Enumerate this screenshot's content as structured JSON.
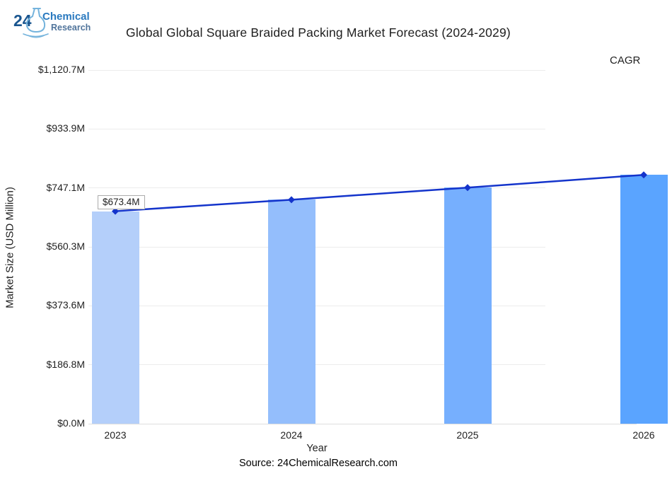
{
  "header": {
    "logo": {
      "number": "24",
      "line1": "Chemical",
      "line2": "Research"
    },
    "cagr_label": "CAGR"
  },
  "chart_data": {
    "type": "bar",
    "subtype": "bars-with-trend-line-and-diamond-markers",
    "title": "Global Global Square Braided Packing Market Forecast (2024-2029)",
    "categories": [
      "2023",
      "2024",
      "2025",
      "2026"
    ],
    "values": [
      673.4,
      709.8,
      748.1,
      788.5
    ],
    "bar_colors": [
      "#b4cffa",
      "#94befc",
      "#76affe",
      "#5aa4ff"
    ],
    "line_color": "#1434cb",
    "xlabel": "Year",
    "ylabel": "Market Size (USD Million)",
    "ylim": [
      0,
      1120.7
    ],
    "yticks": [
      "$0.0M",
      "$186.8M",
      "$373.6M",
      "$560.3M",
      "$747.1M",
      "$933.9M",
      "$1,120.7M"
    ],
    "grid": true,
    "legend": "none",
    "annotation": {
      "text": "$673.4M",
      "category": "2023"
    },
    "clipped_right_edge": true
  },
  "footer": {
    "source": "Source: 24ChemicalResearch.com"
  }
}
